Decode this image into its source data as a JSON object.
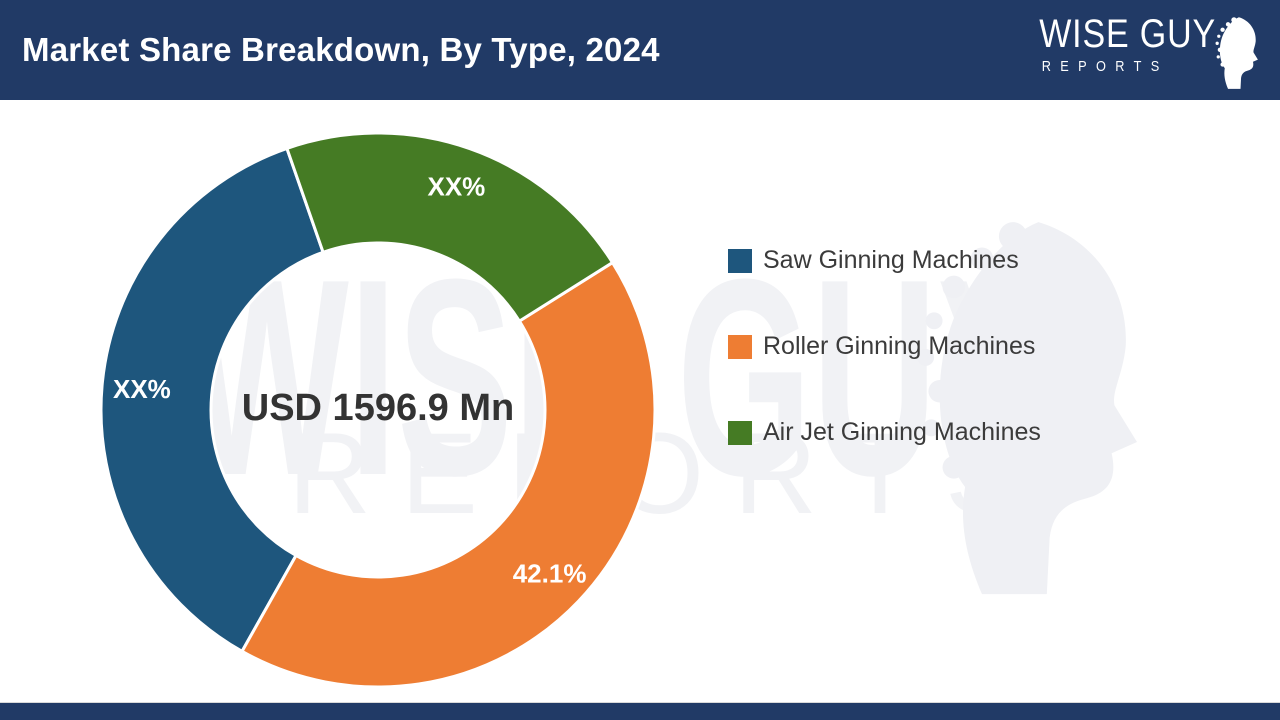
{
  "header": {
    "title": "Market Share Breakdown, By Type, 2024",
    "bg_color": "#213A66",
    "logo": {
      "line1": "WISE GUY",
      "line2": "REPORTS"
    }
  },
  "watermark": {
    "line1": "WISE GUY",
    "line2": "REPORTS"
  },
  "chart_data": {
    "type": "pie",
    "donut": true,
    "title": "Market Share Breakdown, By Type, 2024",
    "center_label": "USD 1596.9 Mn",
    "start_angle_deg": 109.2,
    "direction": "counterclockwise",
    "legend_position": "right",
    "categories": [
      "Saw Ginning Machines",
      "Roller Ginning Machines",
      "Air Jet Ginning Machines"
    ],
    "slices": [
      {
        "label": "Saw Ginning Machines",
        "value_pct": 36.5,
        "display": "XX%",
        "color": "#1E567D"
      },
      {
        "label": "Roller Ginning Machines",
        "value_pct": 42.1,
        "display": "42.1%",
        "color": "#EE7D33"
      },
      {
        "label": "Air Jet Ginning Machines",
        "value_pct": 21.4,
        "display": "XX%",
        "color": "#457B24"
      }
    ]
  },
  "footer": {
    "bg_color": "#213A66"
  }
}
